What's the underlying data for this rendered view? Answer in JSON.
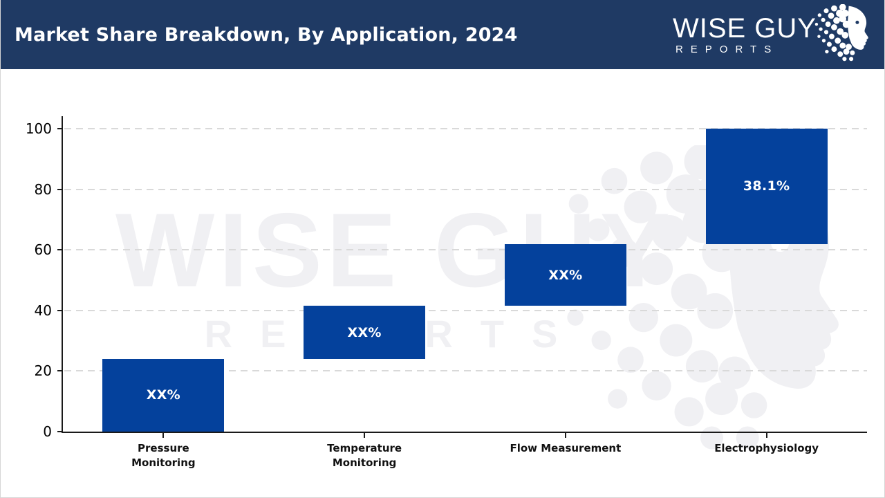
{
  "header": {
    "title": "Market Share Breakdown, By Application, 2024",
    "logo": {
      "name": "WISE GUY",
      "sub": "REPORTS"
    }
  },
  "watermark": {
    "name": "WISE GUY",
    "sub": "REPORTS"
  },
  "chart_data": {
    "type": "bar",
    "subtype": "waterfall",
    "title": "Market Share Breakdown, By Application, 2024",
    "categories": [
      "Pressure Monitoring",
      "Temperature Monitoring",
      "Flow Measurement",
      "Electrophysiology"
    ],
    "category_label_lines": [
      [
        "Pressure",
        "Monitoring"
      ],
      [
        "Temperature",
        "Monitoring"
      ],
      [
        "Flow Measurement"
      ],
      [
        "Electrophysiology"
      ]
    ],
    "bars": [
      {
        "category": "Pressure Monitoring",
        "start": 0,
        "end": 24.0,
        "height": 24.0,
        "label": "XX%"
      },
      {
        "category": "Temperature Monitoring",
        "start": 24.0,
        "end": 41.5,
        "height": 17.5,
        "label": "XX%"
      },
      {
        "category": "Flow Measurement",
        "start": 41.5,
        "end": 61.9,
        "height": 20.4,
        "label": "XX%"
      },
      {
        "category": "Electrophysiology",
        "start": 61.9,
        "end": 100,
        "height": 38.1,
        "label": "38.1%"
      }
    ],
    "ylim": [
      0,
      100
    ],
    "yticks": [
      0,
      20,
      40,
      60,
      80,
      100
    ],
    "xlabel": "",
    "ylabel": "",
    "grid": "dashed horizontal",
    "legend": "none"
  },
  "colors": {
    "header_bg": "#1f3a64",
    "header_text": "#ffffff",
    "bar": "#04419c",
    "bar_label": "#ffffff",
    "axis": "#1a1a1a",
    "gridline": "#d9d9d9",
    "tick_label": "#000000",
    "watermark": "#f0f0f3",
    "page_border": "#d6d6d6",
    "background": "#ffffff"
  }
}
